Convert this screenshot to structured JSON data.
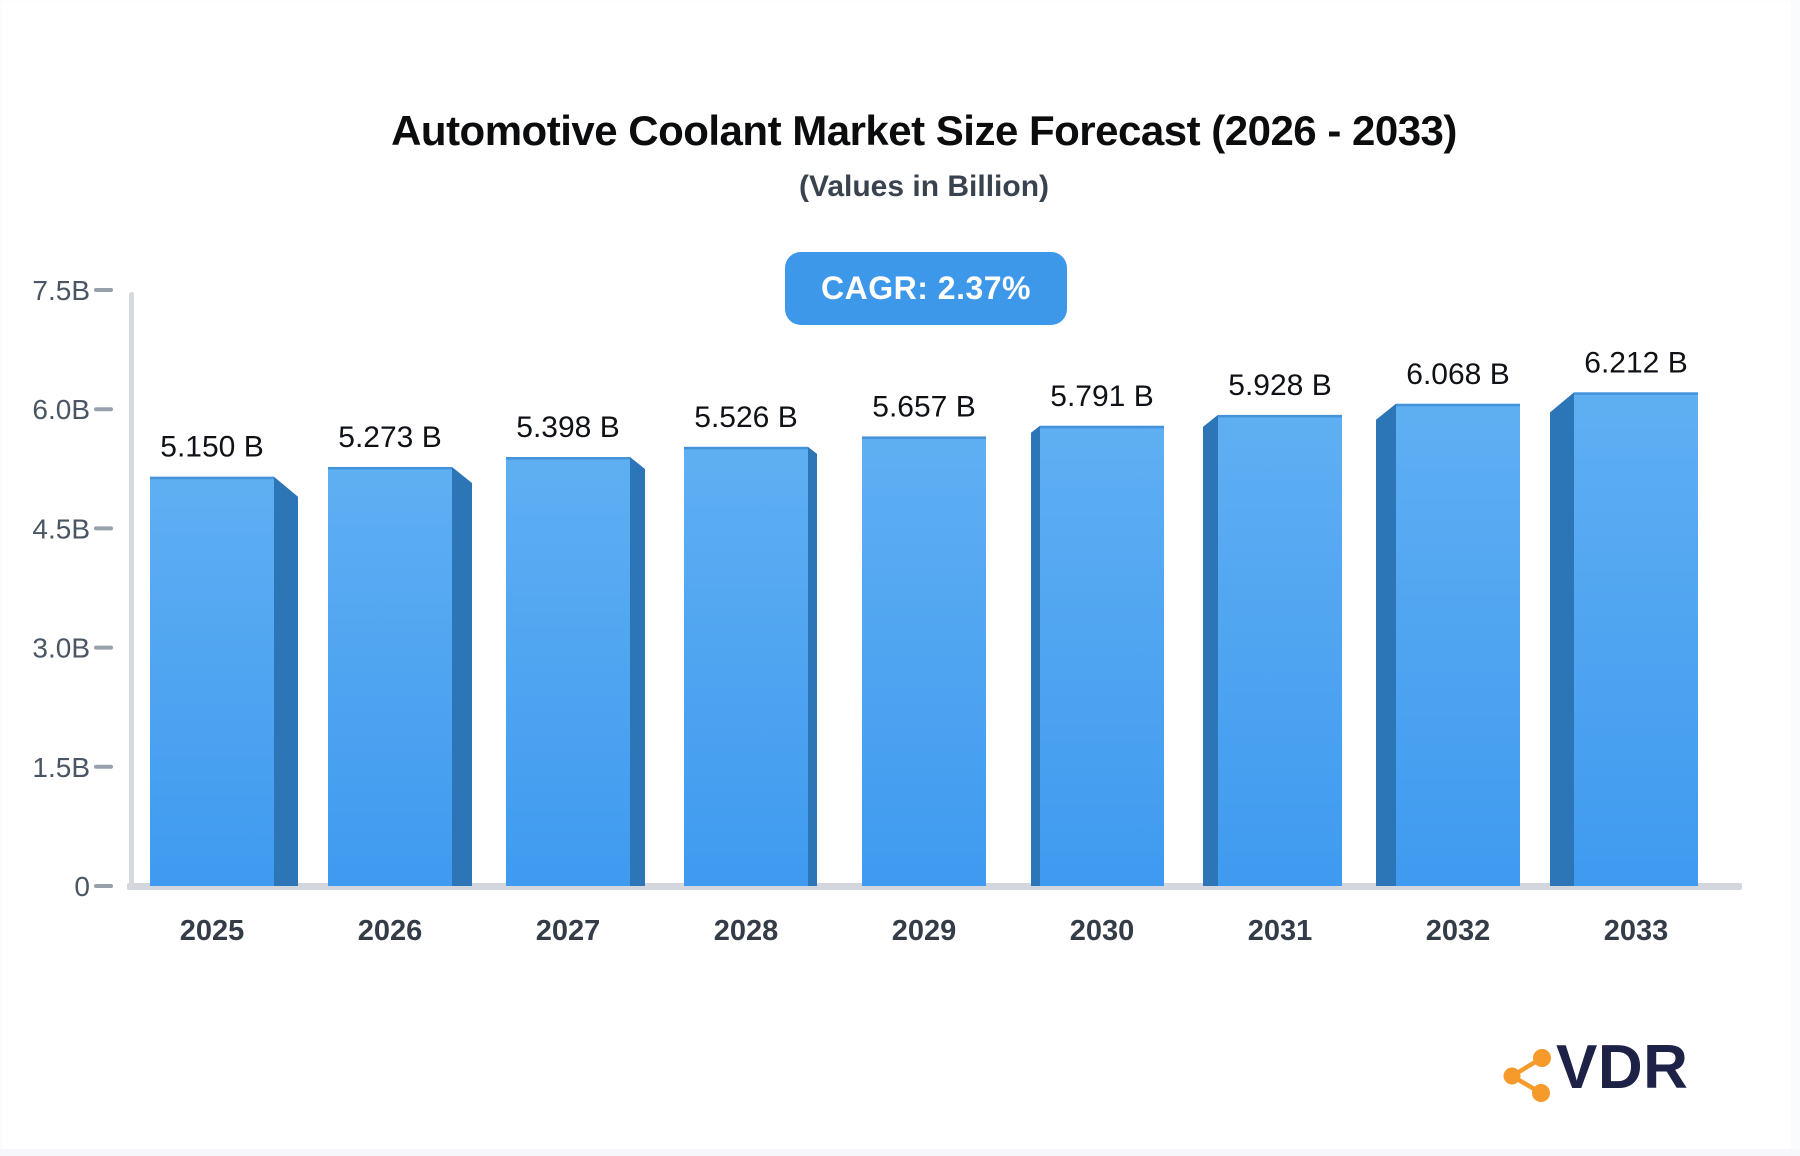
{
  "badge": {
    "label": "CAGR: 2.37%"
  },
  "chart_data": {
    "type": "bar",
    "title": "Automotive Coolant Market Size Forecast (2026 - 2033)",
    "subtitle": "(Values in Billion)",
    "categories": [
      "2025",
      "2026",
      "2027",
      "2028",
      "2029",
      "2030",
      "2031",
      "2032",
      "2033"
    ],
    "values": [
      5.15,
      5.273,
      5.398,
      5.526,
      5.657,
      5.791,
      5.928,
      6.068,
      6.212
    ],
    "value_labels": [
      "5.150 B",
      "5.273 B",
      "5.398 B",
      "5.526 B",
      "5.657 B",
      "5.791 B",
      "5.928 B",
      "6.068 B",
      "6.212 B"
    ],
    "xlabel": "",
    "ylabel": "",
    "ylim": [
      0,
      7.5
    ],
    "y_ticks": [
      {
        "value": 0,
        "label": "0"
      },
      {
        "value": 1.5,
        "label": "1.5B"
      },
      {
        "value": 3.0,
        "label": "3.0B"
      },
      {
        "value": 4.5,
        "label": "4.5B"
      },
      {
        "value": 6.0,
        "label": "6.0B"
      },
      {
        "value": 7.5,
        "label": "7.5B"
      }
    ],
    "grid": false,
    "legend": "none",
    "cagr_percent": 2.37,
    "bar_style": "3d-perspective"
  },
  "colors": {
    "bar_top": "#5fafF2",
    "bar_bottom": "#3f9af0",
    "bar_side": "#2c75b6",
    "bar_edge": "#3f8ed6",
    "axis_line": "#d5d9de",
    "baseline": "#d3d7dd",
    "tick_dash": "#98a1ab",
    "y_tick_text": "#4a5663",
    "x_tick_text": "#333c47",
    "value_text": "#0e1116",
    "badge_bg": "#3d98ea",
    "badge_text": "#ffffff",
    "logo_icon": "#f59a2b",
    "logo_text": "#1e2247"
  },
  "logo": {
    "text": "VDR",
    "icon": "share-network-icon"
  }
}
